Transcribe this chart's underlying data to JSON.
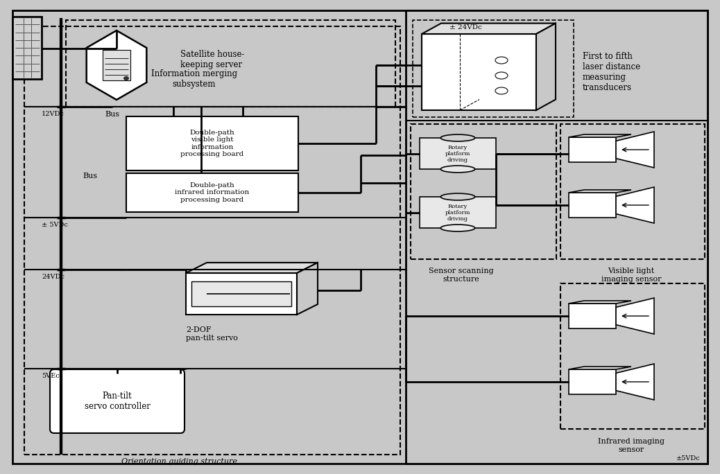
{
  "bg_color": "#c8c8c8",
  "inner_bg": "#c8c8c8",
  "white": "#ffffff",
  "figsize": [
    10.38,
    6.84
  ],
  "dpi": 100,
  "labels": {
    "satellite": "Satellite house-\nkeeping server",
    "info_merge": "Information merging\nsubsystem",
    "bus1": "Bus",
    "bus2": "Bus",
    "double_path_vis": "Double-path\nvisible light\ninformation\nprocessing board",
    "double_path_ir": "Double-path\ninfrared information\nprocessing board",
    "dof_servo": "2-DOF\npan-tilt servo",
    "pan_tilt": "Pan-tilt\nservo controller",
    "orientation": "Orientation guiding structure",
    "sensor_scanning": "Sensor scanning\nstructure",
    "rotary1": "Rotary\nplatform\ndriving",
    "rotary2": "Rotary\nplatform\ndriving",
    "laser": "First to fifth\nlaser distance\nmeasuring\ntransducers",
    "visible_light": "Visible light\nimaging sensor",
    "infrared": "Infrared imaging\nsensor",
    "volt_12": "12VDc",
    "volt_5_1": "± 5VDc",
    "volt_24": "24VDc",
    "volt_5_2": "5VEc",
    "volt_24_top": "± 24VDc",
    "volt_5_bot": "±5VDc"
  }
}
